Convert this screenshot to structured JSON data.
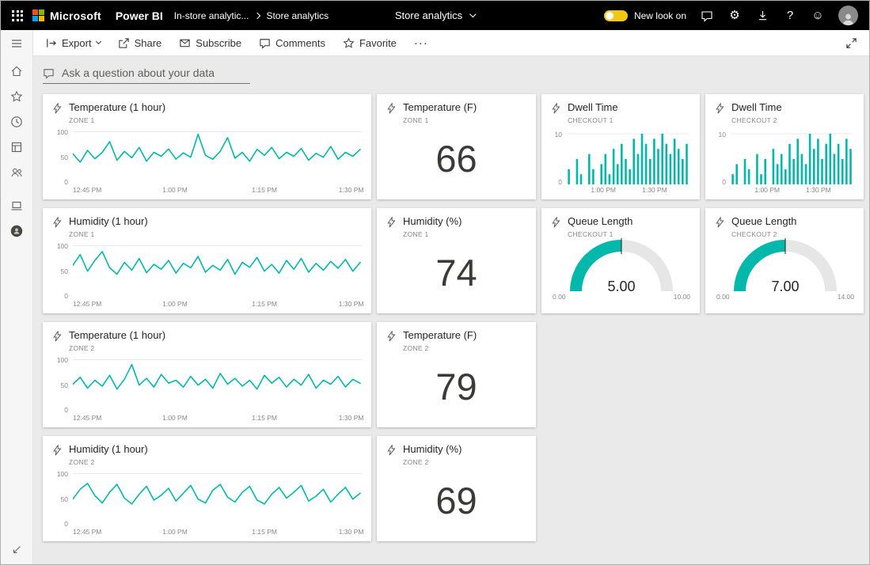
{
  "colors": {
    "accent": "#01B8AA",
    "topbar": "#000000",
    "toggle_on": "#F2C811",
    "grid": "#e8e8e8",
    "text_dark": "#252423",
    "text_muted": "#8a8886"
  },
  "topbar": {
    "brand": "Microsoft",
    "product": "Power BI",
    "breadcrumb_workspace": "In-store analytic...",
    "breadcrumb_dashboard": "Store analytics",
    "title": "Store analytics",
    "new_look_label": "New look on"
  },
  "icons": {
    "gear": "⚙",
    "help": "?",
    "smiley": "☺",
    "more": "···"
  },
  "toolbar": {
    "export_label": "Export",
    "share_label": "Share",
    "subscribe_label": "Subscribe",
    "comments_label": "Comments",
    "favorite_label": "Favorite"
  },
  "ask": {
    "placeholder": "Ask a question about your data"
  },
  "tiles": [
    {
      "type": "line",
      "title": "Temperature (1 hour)",
      "subtitle": "ZONE 1",
      "y_max": 100,
      "y_ticks": [
        "100",
        "50",
        "0"
      ],
      "x_ticks": [
        "12:45 PM",
        "1:00 PM",
        "1:15 PM",
        "1:30 PM"
      ],
      "values": [
        55,
        38,
        62,
        45,
        58,
        80,
        42,
        60,
        47,
        68,
        40,
        58,
        50,
        65,
        44,
        57,
        48,
        95,
        52,
        44,
        60,
        88,
        46,
        58,
        40,
        64,
        52,
        68,
        45,
        58,
        50,
        66,
        42,
        56,
        48,
        70,
        44,
        58,
        50,
        64
      ]
    },
    {
      "type": "card",
      "title": "Temperature (F)",
      "subtitle": "ZONE 1",
      "value": "66"
    },
    {
      "type": "bar",
      "title": "Dwell Time",
      "subtitle": "CHECKOUT 1",
      "y_max": 10,
      "y_ticks": [
        "10",
        "0"
      ],
      "x_ticks": [
        "1:00 PM",
        "1:30 PM"
      ],
      "values": [
        3,
        0,
        5,
        2,
        0,
        6,
        3,
        0,
        4,
        6,
        2,
        7,
        4,
        8,
        5,
        3,
        9,
        6,
        10,
        8,
        5,
        9,
        7,
        10,
        8,
        6,
        9,
        7,
        5,
        8
      ]
    },
    {
      "type": "bar",
      "title": "Dwell Time",
      "subtitle": "CHECKOUT 2",
      "y_max": 10,
      "y_ticks": [
        "10",
        "0"
      ],
      "x_ticks": [
        "1:00 PM",
        "1:30 PM"
      ],
      "values": [
        2,
        4,
        0,
        5,
        3,
        0,
        6,
        2,
        5,
        0,
        7,
        4,
        6,
        3,
        8,
        5,
        9,
        6,
        4,
        10,
        7,
        9,
        5,
        8,
        10,
        6,
        8,
        5,
        9,
        7
      ]
    },
    {
      "type": "line",
      "title": "Humidity (1 hour)",
      "subtitle": "ZONE 1",
      "y_max": 100,
      "y_ticks": [
        "100",
        "50",
        "0"
      ],
      "x_ticks": [
        "12:45 PM",
        "1:00 PM",
        "1:15 PM",
        "1:30 PM"
      ],
      "values": [
        60,
        82,
        48,
        70,
        88,
        55,
        42,
        66,
        50,
        74,
        45,
        62,
        52,
        70,
        44,
        64,
        55,
        78,
        46,
        60,
        50,
        72,
        42,
        66,
        56,
        76,
        48,
        62,
        44,
        70,
        52,
        74,
        46,
        64,
        50,
        68,
        54,
        72,
        48,
        66
      ]
    },
    {
      "type": "card",
      "title": "Humidity (%)",
      "subtitle": "ZONE 1",
      "value": "74"
    },
    {
      "type": "gauge",
      "title": "Queue Length",
      "subtitle": "CHECKOUT 1",
      "value": 5,
      "max_value": 10,
      "display": "5.00",
      "min_label": "0.00",
      "max_label": "10.00"
    },
    {
      "type": "gauge",
      "title": "Queue Length",
      "subtitle": "CHECKOUT 2",
      "value": 7,
      "max_value": 14,
      "display": "7.00",
      "min_label": "0.00",
      "max_label": "14.00"
    },
    {
      "type": "line",
      "title": "Temperature (1 hour)",
      "subtitle": "ZONE 2",
      "y_max": 100,
      "y_ticks": [
        "100",
        "50",
        "0"
      ],
      "x_ticks": [
        "12:45 PM",
        "1:00 PM",
        "1:15 PM",
        "1:30 PM"
      ],
      "values": [
        50,
        64,
        42,
        58,
        46,
        68,
        40,
        60,
        90,
        48,
        62,
        44,
        70,
        52,
        58,
        44,
        66,
        48,
        60,
        42,
        72,
        50,
        62,
        46,
        58,
        40,
        68,
        52,
        64,
        44,
        60,
        48,
        70,
        42,
        58,
        50,
        66,
        44,
        60,
        52
      ]
    },
    {
      "type": "card",
      "title": "Temperature (F)",
      "subtitle": "ZONE 2",
      "value": "79"
    },
    {
      "type": "line",
      "title": "Humidity (1 hour)",
      "subtitle": "ZONE 2",
      "y_max": 100,
      "y_ticks": [
        "100",
        "50",
        "0"
      ],
      "x_ticks": [
        "12:45 PM",
        "1:00 PM",
        "1:15 PM",
        "1:30 PM"
      ],
      "values": [
        48,
        68,
        80,
        55,
        40,
        62,
        78,
        50,
        38,
        58,
        74,
        46,
        56,
        70,
        44,
        60,
        76,
        48,
        40,
        66,
        78,
        52,
        42,
        62,
        74,
        46,
        38,
        58,
        72,
        50,
        62,
        76,
        44,
        54,
        68,
        42,
        58,
        72,
        48,
        60
      ]
    },
    {
      "type": "card",
      "title": "Humidity (%)",
      "subtitle": "ZONE 2",
      "value": "69"
    }
  ]
}
